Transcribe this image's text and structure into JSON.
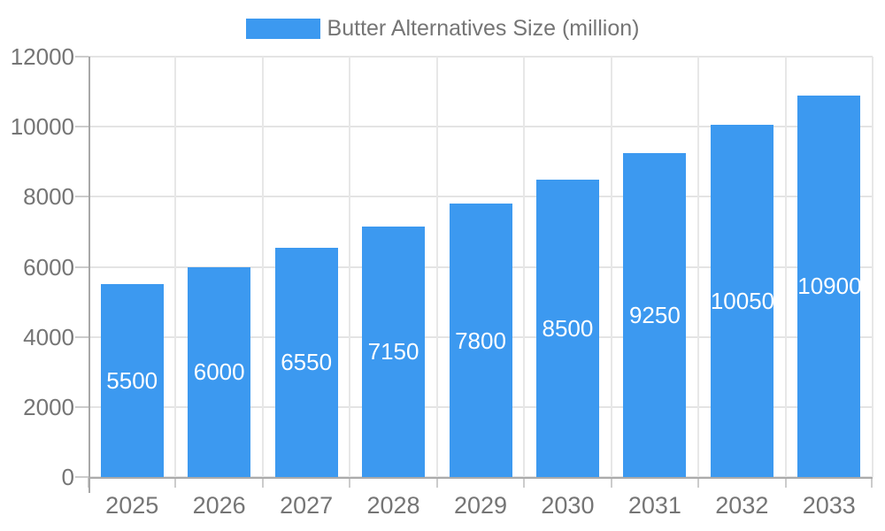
{
  "chart_data": {
    "type": "bar",
    "title": "Butter Alternatives Size (million)",
    "legend": {
      "label": "Butter Alternatives Size (million)",
      "position": "top-center"
    },
    "categories": [
      "2025",
      "2026",
      "2027",
      "2028",
      "2029",
      "2030",
      "2031",
      "2032",
      "2033"
    ],
    "values": [
      5500,
      6000,
      6550,
      7150,
      7800,
      8500,
      9250,
      10050,
      10900
    ],
    "value_labels": [
      "5500",
      "6000",
      "6550",
      "7150",
      "7800",
      "8500",
      "9250",
      "10050",
      "10900"
    ],
    "xlabel": "",
    "ylabel": "",
    "ylim": [
      0,
      12000
    ],
    "yticks": [
      0,
      2000,
      4000,
      6000,
      8000,
      10000,
      12000
    ],
    "grid": true,
    "colors": {
      "bar": "#3c99f0",
      "value_label_text": "#ffffff",
      "axis_text": "#757575",
      "gridline": "#e4e4e4",
      "axis_line": "#a8a8a8",
      "tick": "#cccccc",
      "background": "#ffffff"
    }
  }
}
